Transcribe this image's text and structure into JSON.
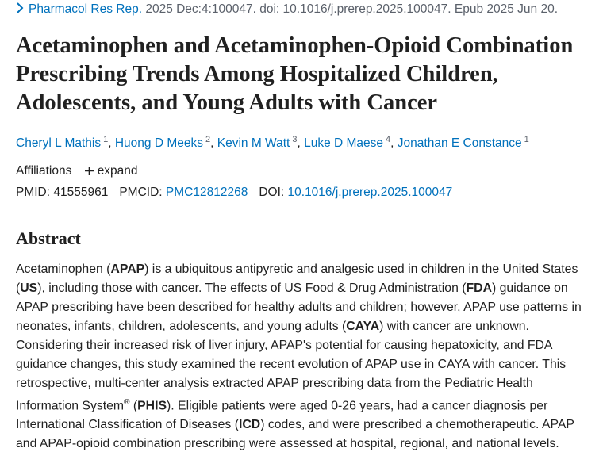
{
  "citation": {
    "journal": "Pharmacol Res Rep.",
    "details": "2025 Dec:4:100047. doi: 10.1016/j.prerep.2025.100047. Epub 2025 Jun 20."
  },
  "title": "Acetaminophen and Acetaminophen-Opioid Combination Prescribing Trends Among Hospitalized Children, Adolescents, and Young Adults with Cancer",
  "authors": {
    "separator": ", ",
    "list": [
      {
        "name": "Cheryl L Mathis",
        "affiliation": "1"
      },
      {
        "name": "Huong D Meeks",
        "affiliation": "2"
      },
      {
        "name": "Kevin M Watt",
        "affiliation": "3"
      },
      {
        "name": "Luke D Maese",
        "affiliation": "4"
      },
      {
        "name": "Jonathan E Constance",
        "affiliation": "1"
      }
    ]
  },
  "affiliations": {
    "label": "Affiliations",
    "toggle": "expand"
  },
  "identifiers": [
    {
      "label": "PMID:",
      "value": "41555961"
    },
    {
      "label": "PMCID:",
      "value": "PMC12812268"
    },
    {
      "label": "DOI:",
      "value": "10.1016/j.prerep.2025.100047"
    }
  ],
  "abstract": {
    "heading": "Abstract",
    "segments": [
      {
        "text": "Acetaminophen ("
      },
      {
        "text": "APAP",
        "bold": true
      },
      {
        "text": ") is a ubiquitous antipyretic and analgesic used in children in the United States ("
      },
      {
        "text": "US",
        "bold": true
      },
      {
        "text": "), including those with cancer. The effects of US Food & Drug Administration ("
      },
      {
        "text": "FDA",
        "bold": true
      },
      {
        "text": ") guidance on APAP prescribing have been described for healthy adults and children; however, APAP use patterns in neonates, infants, children, adolescents, and young adults ("
      },
      {
        "text": "CAYA",
        "bold": true
      },
      {
        "text": ") with cancer are unknown. Considering their increased risk of liver injury, APAP's potential for causing hepatoxicity, and FDA guidance changes, this study examined the recent evolution of APAP use in CAYA with cancer. This retrospective, multi-center analysis extracted APAP prescribing data from the Pediatric Health Information System"
      },
      {
        "text": "®",
        "sup": true
      },
      {
        "text": " ("
      },
      {
        "text": "PHIS",
        "bold": true
      },
      {
        "text": "). Eligible patients were aged 0-26 years, had a cancer diagnosis per International Classification of Diseases ("
      },
      {
        "text": "ICD",
        "bold": true
      },
      {
        "text": ") codes, and were prescribed a chemotherapeutic. APAP and APAP-opioid combination prescribing were assessed at hospital, regional, and national levels."
      }
    ]
  }
}
